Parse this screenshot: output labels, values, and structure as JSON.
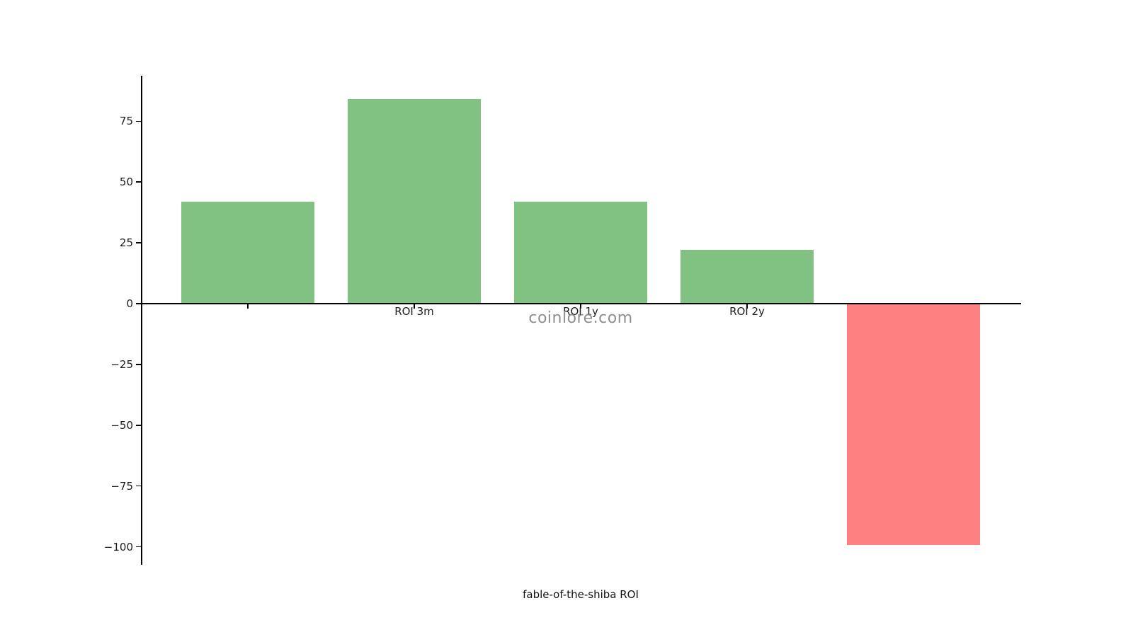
{
  "page": {
    "background": "#ffffff"
  },
  "chart_data": {
    "type": "bar",
    "title": "fable-of-the-shiba ROI",
    "watermark": "coinlore.com",
    "categories": [
      "",
      "ROI 3m",
      "ROI 1y",
      "ROI 2y",
      ""
    ],
    "values": [
      42,
      84,
      42,
      22,
      -99
    ],
    "bar_colors": [
      "#81c182",
      "#81c182",
      "#81c182",
      "#81c182",
      "#ff8080"
    ],
    "positive_color": "#81c182",
    "negative_color": "#ff8080",
    "ytick_values": [
      75,
      50,
      25,
      0,
      -25,
      -50,
      -75,
      -100
    ],
    "ytick_labels": [
      "75",
      "50",
      "25",
      "0",
      "−25",
      "−50",
      "−75",
      "−100"
    ],
    "ylim": [
      -107.4,
      93.7
    ],
    "xlabel": "",
    "ylabel": "",
    "grid": false,
    "legend": null,
    "axis_color": "#000000",
    "tick_label_color": "#1c1c1c",
    "watermark_color": "#8f8f8f"
  }
}
